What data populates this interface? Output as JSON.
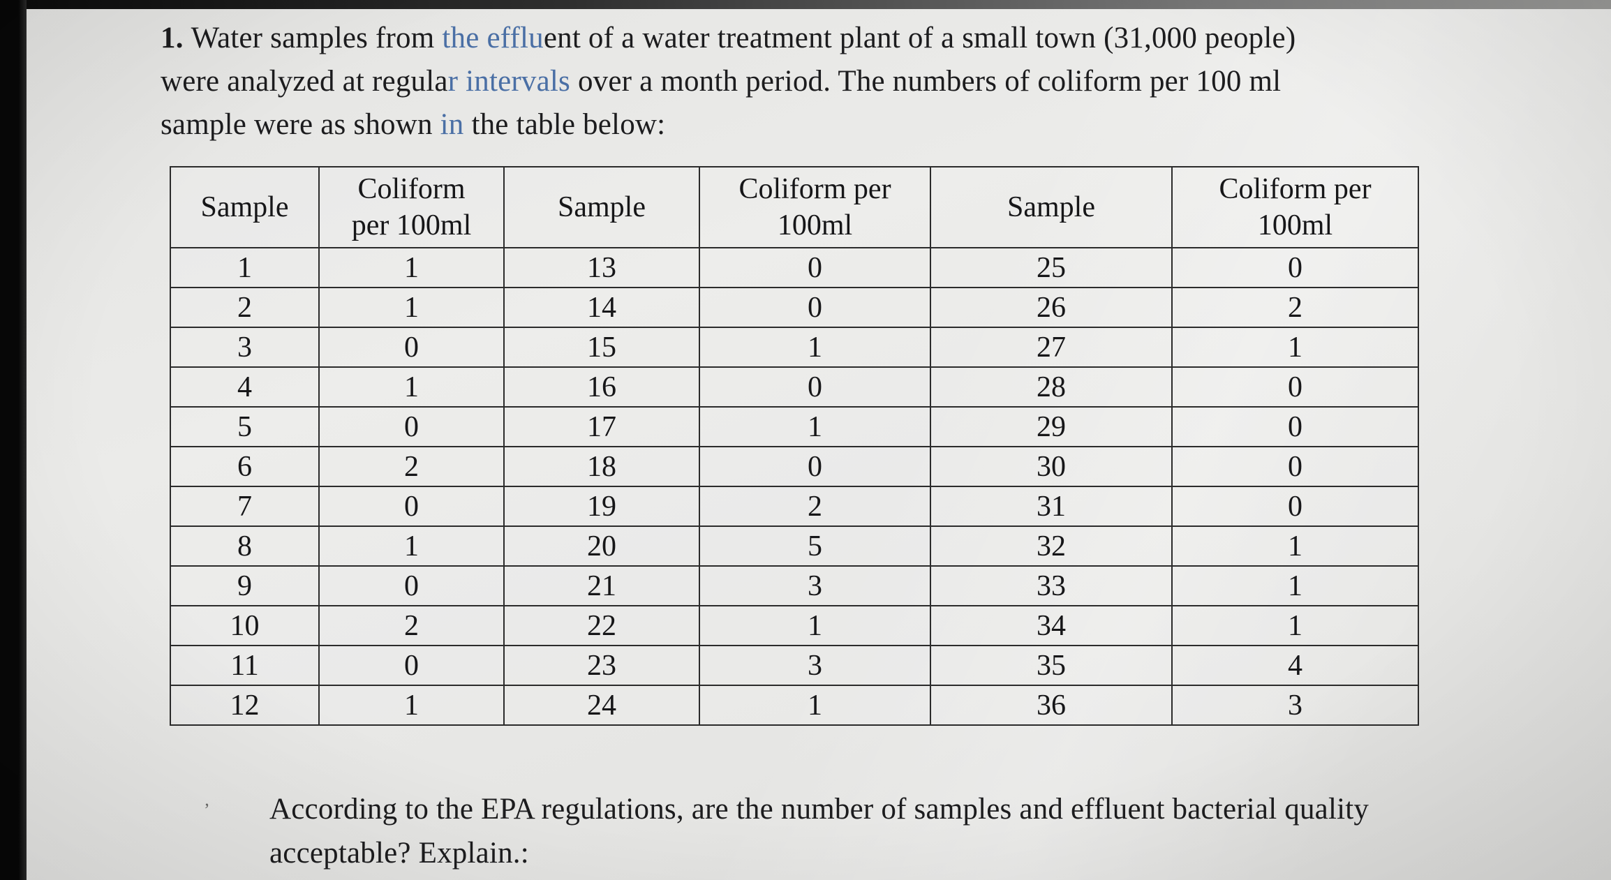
{
  "page": {
    "intro_lines": [
      [
        {
          "t": "1. ",
          "style": "bold"
        },
        {
          "t": "Water samples from "
        },
        {
          "t": "the efflu",
          "style": "blue"
        },
        {
          "t": "ent of a water treatment plant of a small town (31,000 people)"
        }
      ],
      [
        {
          "t": "were analyzed at regula"
        },
        {
          "t": "r intervals",
          "style": "blue"
        },
        {
          "t": " over a month period. The numbers of coliform per 100 ml"
        }
      ],
      [
        {
          "t": "sample were as shown "
        },
        {
          "t": "in",
          "style": "blue"
        },
        {
          "t": " the table below:"
        }
      ]
    ],
    "footer_text": "According to the EPA regulations, are the number of samples and effluent bacterial quality\nacceptable? Explain.:",
    "stray_mark": "’"
  },
  "chart_data": {
    "type": "table",
    "columns": [
      "Sample",
      "Coliform per 100ml",
      "Sample",
      "Coliform per 100ml",
      "Sample",
      "Coliform per 100ml"
    ],
    "header_display": [
      "Sample",
      "Coliform\nper 100ml",
      "Sample",
      "Coliform per\n100ml",
      "Sample",
      "Coliform per\n100ml"
    ],
    "rows": [
      [
        "1",
        "1",
        "13",
        "0",
        "25",
        "0"
      ],
      [
        "2",
        "1",
        "14",
        "0",
        "26",
        "2"
      ],
      [
        "3",
        "0",
        "15",
        "1",
        "27",
        "1"
      ],
      [
        "4",
        "1",
        "16",
        "0",
        "28",
        "0"
      ],
      [
        "5",
        "0",
        "17",
        "1",
        "29",
        "0"
      ],
      [
        "6",
        "2",
        "18",
        "0",
        "30",
        "0"
      ],
      [
        "7",
        "0",
        "19",
        "2",
        "31",
        "0"
      ],
      [
        "8",
        "1",
        "20",
        "5",
        "32",
        "1"
      ],
      [
        "9",
        "0",
        "21",
        "3",
        "33",
        "1"
      ],
      [
        "10",
        "2",
        "22",
        "1",
        "34",
        "1"
      ],
      [
        "11",
        "0",
        "23",
        "3",
        "35",
        "4"
      ],
      [
        "12",
        "1",
        "24",
        "1",
        "36",
        "3"
      ]
    ]
  }
}
